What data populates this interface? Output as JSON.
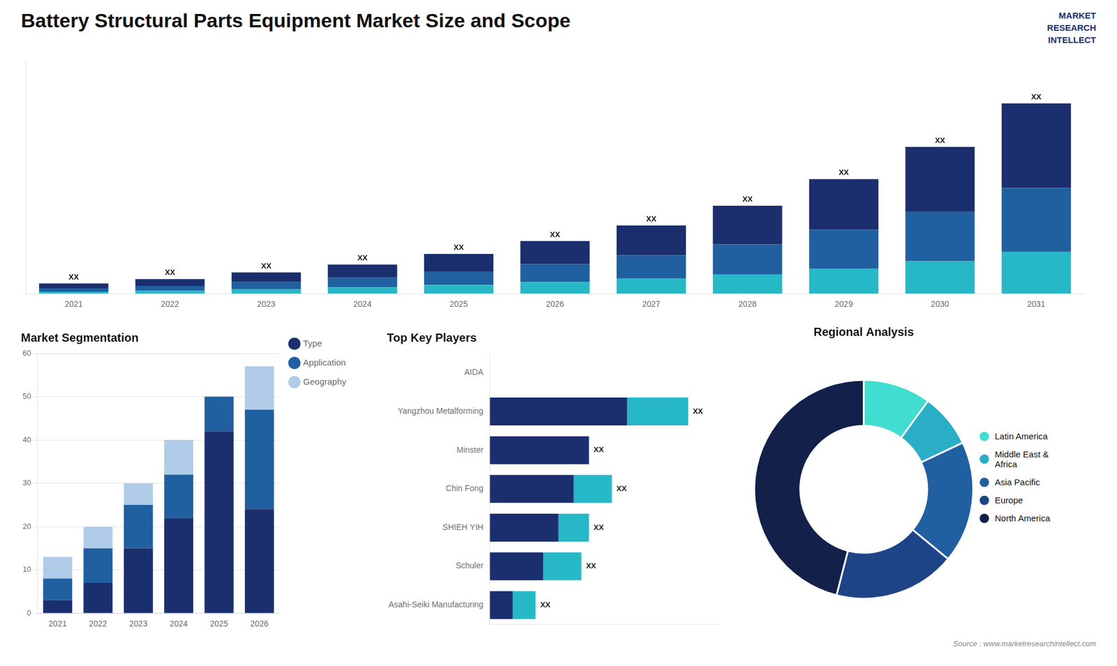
{
  "title": "Battery Structural Parts Equipment Market Size and Scope",
  "annotations": [
    "MARKET\nRESEARCH\nINTELLECT",
    "Source : www.marketresearchintellect.com"
  ],
  "chart_data": [
    {
      "type": "bar",
      "stacked": true,
      "categories": [
        "2021",
        "2022",
        "2023",
        "2024",
        "2025",
        "2026",
        "2027",
        "2028",
        "2029",
        "2030",
        "2031"
      ],
      "series": [
        {
          "color": "#27b8c8",
          "values": [
            0.4,
            0.6,
            0.9,
            1.3,
            1.8,
            2.4,
            3.1,
            4.0,
            5.2,
            6.7,
            8.7
          ]
        },
        {
          "color": "#2060a0",
          "values": [
            0.7,
            1.0,
            1.5,
            2.0,
            2.8,
            3.7,
            4.8,
            6.2,
            8.0,
            10.2,
            13.2
          ]
        },
        {
          "color": "#1b2f6e",
          "values": [
            1.0,
            1.4,
            2.0,
            2.7,
            3.6,
            4.8,
            6.2,
            8.0,
            10.5,
            13.5,
            17.5
          ],
          "data_labels": true,
          "value_labels": [
            "XX",
            "XX",
            "XX",
            "XX",
            "XX",
            "XX",
            "XX",
            "XX",
            "XX",
            "XX",
            "XX"
          ]
        }
      ],
      "ylim": [
        0,
        48.068
      ],
      "tick_labels": "x",
      "grid": false
    },
    {
      "type": "bar",
      "title": "Market Segmentation",
      "stacked": true,
      "categories": [
        "2021",
        "2022",
        "2023",
        "2024",
        "2025",
        "2026"
      ],
      "series": [
        {
          "name": "Type",
          "color": "#1b2f6e",
          "values": [
            3,
            7,
            15,
            22,
            42,
            24
          ]
        },
        {
          "name": "Application",
          "color": "#2060a0",
          "values": [
            5,
            8,
            10,
            10,
            8,
            23
          ]
        },
        {
          "name": "Geography",
          "color": "#b0cce8",
          "values": [
            5,
            5,
            5,
            8,
            0,
            10
          ]
        }
      ],
      "ylim": [
        0,
        60
      ],
      "yticks": [
        0,
        10,
        20,
        30,
        40,
        50,
        60
      ],
      "grid": true,
      "legend": "right"
    },
    {
      "type": "bar",
      "title": "Top Key Players",
      "orientation": "horizontal",
      "stacked": true,
      "categories": [
        "AIDA",
        "Yangzhou Metalforming",
        "Minster",
        "Chin Fong",
        "SHIEH YIH",
        "Schuler",
        "Asahi-Seiki Manufacturing"
      ],
      "series": [
        {
          "color": "#1b2f6e",
          "values": [
            0,
            9.0,
            6.5,
            5.5,
            4.5,
            3.5,
            1.5
          ]
        },
        {
          "color": "#27b8c8",
          "values": [
            0,
            4.0,
            0.0,
            2.5,
            2.0,
            2.5,
            1.5
          ],
          "data_labels": true,
          "value_labels": [
            null,
            "XX",
            "XX",
            "XX",
            "XX",
            "XX",
            "XX"
          ]
        }
      ],
      "xlim": [
        0,
        15
      ],
      "tick_labels": "y",
      "grid": false
    },
    {
      "type": "doughnut",
      "title": "Regional Analysis",
      "categories": [
        "Latin America",
        "Middle East &\nAfrica",
        "Asia Pacific",
        "Europe",
        "North America"
      ],
      "values": [
        10,
        8,
        18,
        18,
        46
      ],
      "colors": [
        "#40ddd0",
        "#2aaec8",
        "#2060a0",
        "#1e4488",
        "#12204a"
      ],
      "legend": "right"
    }
  ]
}
